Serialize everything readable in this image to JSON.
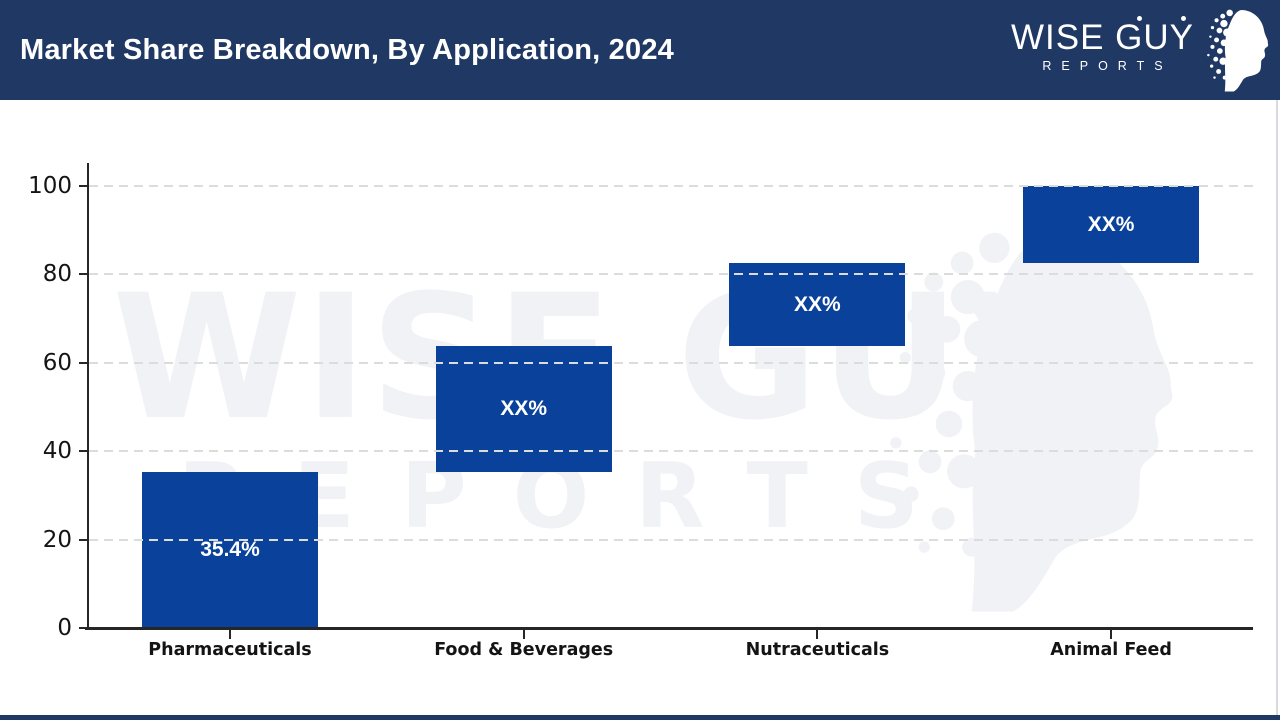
{
  "header": {
    "title": "Market Share Breakdown, By Application, 2024",
    "logo": {
      "line1": "WISE GUY",
      "line2": "REPORTS"
    }
  },
  "watermark": {
    "line1": "WISE GUY",
    "line2": "REPORTS"
  },
  "footer": {},
  "chart_data": {
    "type": "bar",
    "subtype": "waterfall",
    "title": "Market Share Breakdown, By Application, 2024",
    "categories": [
      "Pharmaceuticals",
      "Food & Beverages",
      "Nutraceuticals",
      "Animal Feed"
    ],
    "values": [
      35.4,
      28.3,
      18.8,
      17.5
    ],
    "segments": [
      {
        "category": "Pharmaceuticals",
        "start": 0,
        "end": 35.4,
        "label": "35.4%"
      },
      {
        "category": "Food & Beverages",
        "start": 35.4,
        "end": 63.7,
        "label": "XX%"
      },
      {
        "category": "Nutraceuticals",
        "start": 63.7,
        "end": 82.5,
        "label": "XX%"
      },
      {
        "category": "Animal Feed",
        "start": 82.5,
        "end": 100,
        "label": "XX%"
      }
    ],
    "xlabel": "",
    "ylabel": "",
    "ylim": [
      0,
      100
    ],
    "yticks": [
      0,
      20,
      40,
      60,
      80,
      100
    ],
    "grid": "horizontal dashed, drawn over bars",
    "legend": "none",
    "colors": {
      "bar": "#0a429b",
      "bar_label": "#ffffff",
      "axis": "#262626",
      "grid": "#dcdcdc",
      "tick_text": "#141414",
      "header_bg": "#1f3864",
      "watermark": "#f1f2f5"
    }
  }
}
